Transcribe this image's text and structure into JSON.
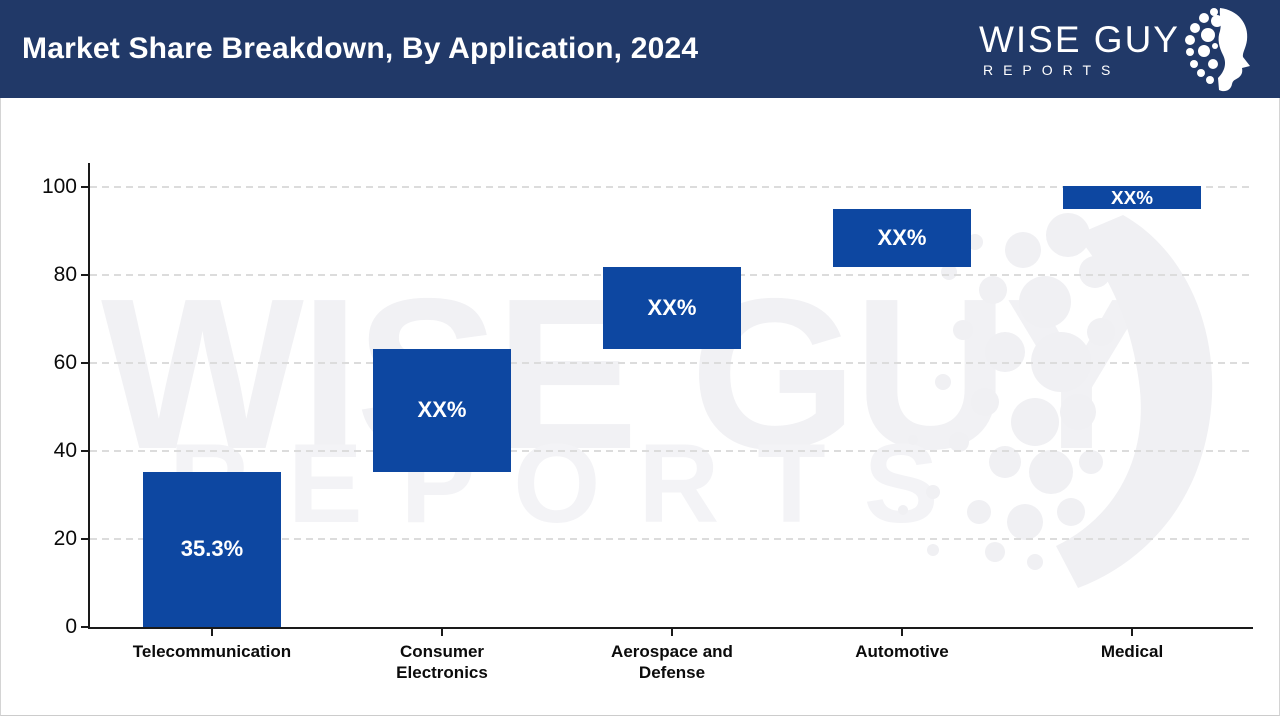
{
  "header": {
    "title": "Market Share Breakdown, By Application, 2024",
    "bg_color": "#213968",
    "logo": {
      "line1": "WISE GUY",
      "line2": "REPORTS"
    }
  },
  "watermark": {
    "line1": "WISE GUY",
    "line2": "REPORTS"
  },
  "chart_data": {
    "type": "bar",
    "variant": "waterfall-stacked-segments",
    "title": "Market Share Breakdown, By Application, 2024",
    "categories": [
      "Telecommunication",
      "Consumer Electronics",
      "Aerospace and Defense",
      "Automotive",
      "Medical"
    ],
    "category_label_lines": [
      [
        "Telecommunication"
      ],
      [
        "Consumer",
        "Electronics"
      ],
      [
        "Aerospace and",
        "Defense"
      ],
      [
        "Automotive"
      ],
      [
        "Medical"
      ]
    ],
    "segments": [
      {
        "category": "Telecommunication",
        "start": 0,
        "end": 35.3,
        "value_estimate": 35.3,
        "label": "35.3%"
      },
      {
        "category": "Consumer Electronics",
        "start": 35.3,
        "end": 63.2,
        "value_estimate": 27.9,
        "label": "XX%"
      },
      {
        "category": "Aerospace and Defense",
        "start": 63.2,
        "end": 81.8,
        "value_estimate": 18.6,
        "label": "XX%"
      },
      {
        "category": "Automotive",
        "start": 81.8,
        "end": 95,
        "value_estimate": 13.2,
        "label": "XX%"
      },
      {
        "category": "Medical",
        "start": 95,
        "end": 100.2,
        "value_estimate": 5.2,
        "label": "XX%"
      }
    ],
    "yticks": [
      0,
      20,
      40,
      60,
      80,
      100
    ],
    "ylim": [
      0,
      105
    ],
    "xlabel": "",
    "ylabel": "",
    "grid": "horizontal-dashed",
    "legend": "none",
    "bar_color": "#0d47a1",
    "bar_label_color": "#ffffff",
    "axis_color": "#1a1a1a",
    "gridline_color": "#dcdcdc"
  }
}
